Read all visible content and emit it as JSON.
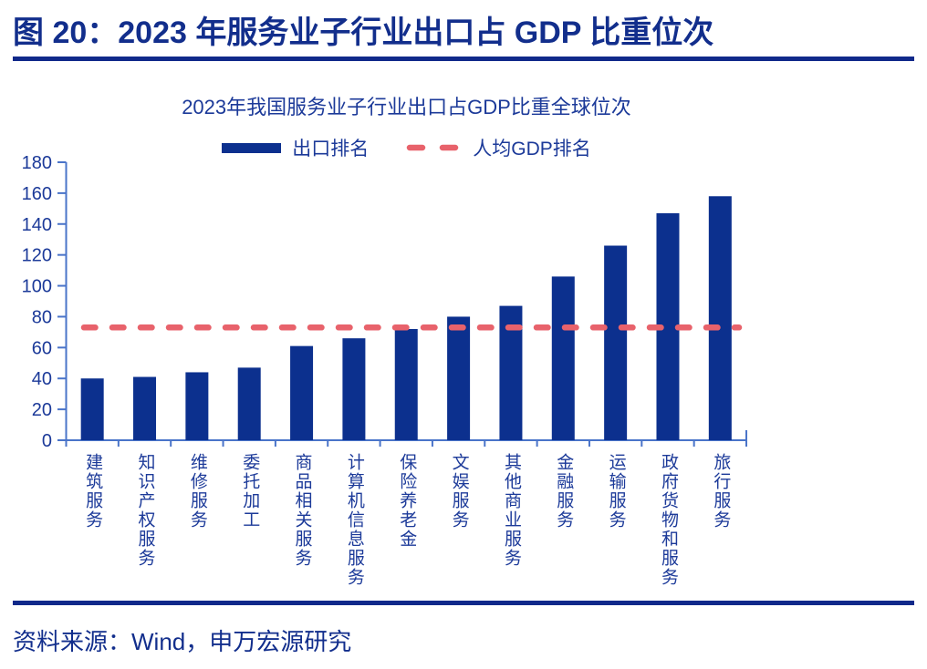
{
  "figure": {
    "title": "图 20：2023 年服务业子行业出口占 GDP 比重位次"
  },
  "source": {
    "text": "资料来源：Wind，申万宏源研究"
  },
  "colors": {
    "navy_text": "#1C3A99",
    "title_navy": "#122E8C",
    "bar_fill": "#0C308E",
    "axis_blue": "#4A74C9",
    "dash_red": "#E8626B",
    "rule_navy": "#10298A"
  },
  "chart_data": {
    "type": "bar",
    "title": "2023年我国服务业子行业出口占GDP比重全球位次",
    "categories": [
      "建筑服务",
      "知识产权服务",
      "维修服务",
      "委托加工",
      "商品相关服务",
      "计算机信息服务",
      "保险养老金",
      "文娱服务",
      "其他商业服务",
      "金融服务",
      "运输服务",
      "政府货物和服务",
      "旅行服务"
    ],
    "series": [
      {
        "name": "出口排名",
        "type": "bar",
        "values": [
          40,
          41,
          44,
          47,
          61,
          66,
          72,
          80,
          87,
          106,
          126,
          147,
          158
        ]
      },
      {
        "name": "人均GDP排名",
        "type": "dashed_hline",
        "value": 73
      }
    ],
    "xlabel": "",
    "ylabel": "",
    "ylim": [
      0,
      180
    ],
    "ytick_step": 20,
    "grid": false,
    "legend_position": "top-center"
  }
}
